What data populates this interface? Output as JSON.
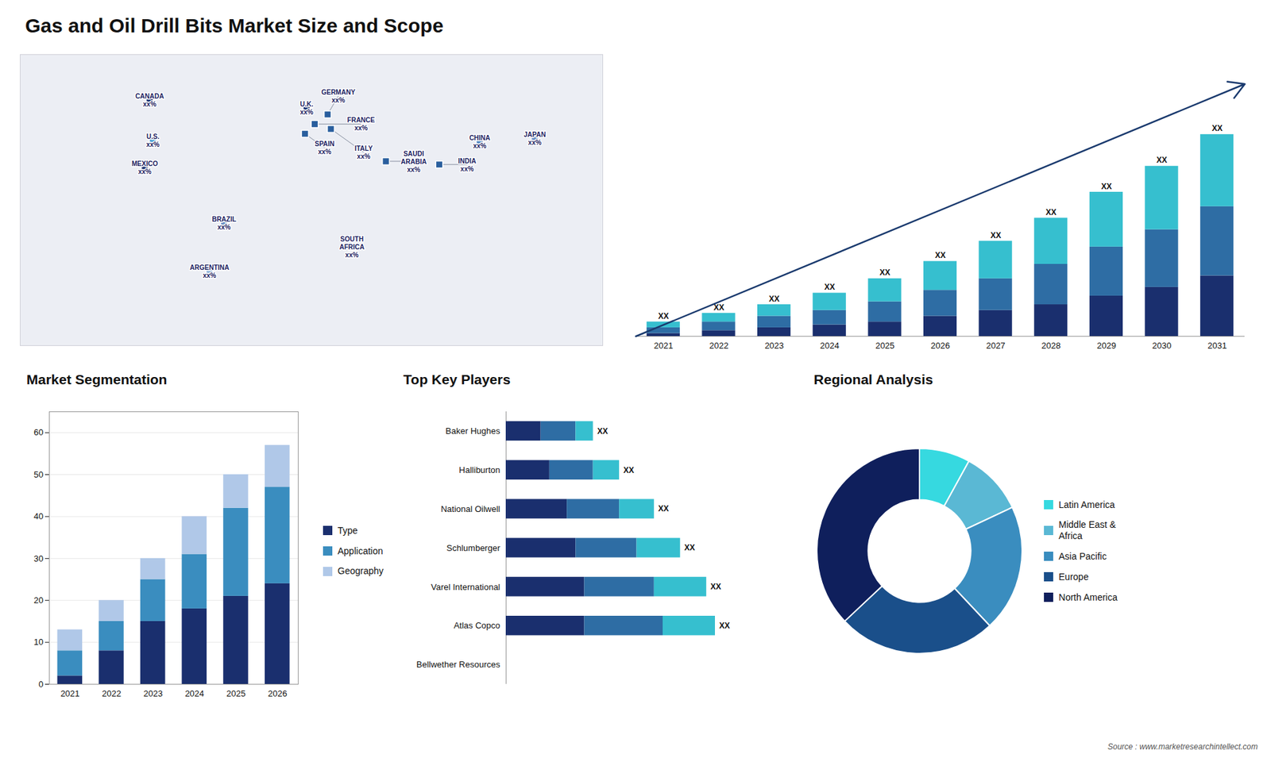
{
  "title": "Gas and Oil Drill Bits Market Size and Scope",
  "source": "Source : www.marketresearchintellect.com",
  "chart_data": [
    {
      "type": "map",
      "categories": [
        "CANADA",
        "U.S.",
        "MEXICO",
        "BRAZIL",
        "ARGENTINA",
        "U.K.",
        "FRANCE",
        "SPAIN",
        "GERMANY",
        "ITALY",
        "SAUDI\nARABIA",
        "SOUTH\nAFRICA",
        "CHINA",
        "INDIA",
        "JAPAN"
      ],
      "labels": [
        "xx%",
        "xx%",
        "xx%",
        "xx%",
        "xx%",
        "xx%",
        "xx%",
        "xx%",
        "xx%",
        "xx%",
        "xx%",
        "xx%",
        "xx%",
        "xx%",
        "xx%"
      ],
      "lon": [
        -100,
        -98,
        -103,
        -54,
        -63,
        -3,
        2,
        -4,
        10,
        12,
        46,
        25,
        104,
        79,
        138
      ],
      "lat": [
        62,
        37,
        20,
        -14,
        -44,
        57,
        47,
        41,
        53,
        44,
        24,
        -29,
        36,
        22,
        38
      ],
      "colors": [
        "#1a2f6e",
        "#4a9fd4",
        "#1a2f6e",
        "#6a8fc4",
        "#8ab0d8",
        "#1a2f6e",
        "#2a5f9e",
        "#2a5f9e",
        "#2a5f9e",
        "#2a5f9e",
        "#2a5f9e",
        "#6a8fc4",
        "#4a7fbe",
        "#2a5f9e",
        "#6a8fc4"
      ],
      "xlim": [
        -180,
        180
      ],
      "ylim": [
        -90,
        90
      ],
      "tick_labels": false
    },
    {
      "type": "bar",
      "stacked": true,
      "categories": [
        "2021",
        "2022",
        "2023",
        "2024",
        "2025",
        "2026",
        "2027",
        "2028",
        "2029",
        "2030",
        "2031"
      ],
      "series": [
        {
          "color": "#1a2f6e",
          "values": [
            1,
            2,
            3,
            4,
            5,
            7,
            9,
            11,
            14,
            17,
            21
          ]
        },
        {
          "color": "#2e6da4",
          "values": [
            2,
            3,
            4,
            5,
            7,
            9,
            11,
            14,
            17,
            20,
            24
          ]
        },
        {
          "color": "#36bfcf",
          "values": [
            2,
            3,
            4,
            6,
            8,
            10,
            13,
            16,
            19,
            22,
            25
          ]
        }
      ],
      "ylim": [
        0,
        94.5
      ],
      "tick_labels": "x",
      "annotations": [
        "XX",
        "XX",
        "XX",
        "XX",
        "XX",
        "XX",
        "XX",
        "XX",
        "XX",
        "XX",
        "XX"
      ],
      "arrow": {
        "y": [
          0,
          87.5
        ],
        "color": "#1a3a6e"
      }
    },
    {
      "type": "bar",
      "title": "Market Segmentation",
      "stacked": true,
      "categories": [
        "2021",
        "2022",
        "2023",
        "2024",
        "2025",
        "2026"
      ],
      "series": [
        {
          "name": "Type",
          "color": "#1a2f6e",
          "values": [
            2,
            8,
            15,
            18,
            21,
            24
          ]
        },
        {
          "name": "Application",
          "color": "#3a8dbf",
          "values": [
            6,
            7,
            10,
            13,
            21,
            23
          ]
        },
        {
          "name": "Geography",
          "color": "#b0c8e8",
          "values": [
            5,
            5,
            5,
            9,
            8,
            10
          ]
        }
      ],
      "ylim": [
        0,
        65
      ],
      "yticks": [
        0,
        10,
        20,
        30,
        40,
        50,
        60
      ],
      "grid": true,
      "legend": "right"
    },
    {
      "type": "bar",
      "title": "Top Key Players",
      "orientation": "horizontal",
      "stacked": true,
      "categories": [
        "Baker Hughes",
        "Halliburton",
        "National Oilwell",
        "Schlumberger",
        "Varel International",
        "Atlas Copco",
        "Bellwether Resources"
      ],
      "series": [
        {
          "color": "#1a2f6e",
          "values": [
            4,
            5,
            7,
            8,
            9,
            9,
            0
          ]
        },
        {
          "color": "#2e6da4",
          "values": [
            4,
            5,
            6,
            7,
            8,
            9,
            0
          ]
        },
        {
          "color": "#36bfcf",
          "values": [
            2,
            3,
            4,
            5,
            6,
            6,
            0
          ]
        }
      ],
      "xlim": [
        0,
        30
      ],
      "tick_labels": "y",
      "annotations": [
        "XX",
        "XX",
        "XX",
        "XX",
        "XX",
        "XX",
        null
      ]
    },
    {
      "type": "pie",
      "title": "Regional Analysis",
      "categories": [
        "Latin America",
        "Middle East &\nAfrica",
        "Asia Pacific",
        "Europe",
        "North America"
      ],
      "values": [
        8,
        10,
        20,
        25,
        37
      ],
      "colors": [
        "#36d9e0",
        "#5ab8d4",
        "#3a8dbf",
        "#1a4f8a",
        "#0f1f5c"
      ],
      "legend": "right"
    }
  ]
}
